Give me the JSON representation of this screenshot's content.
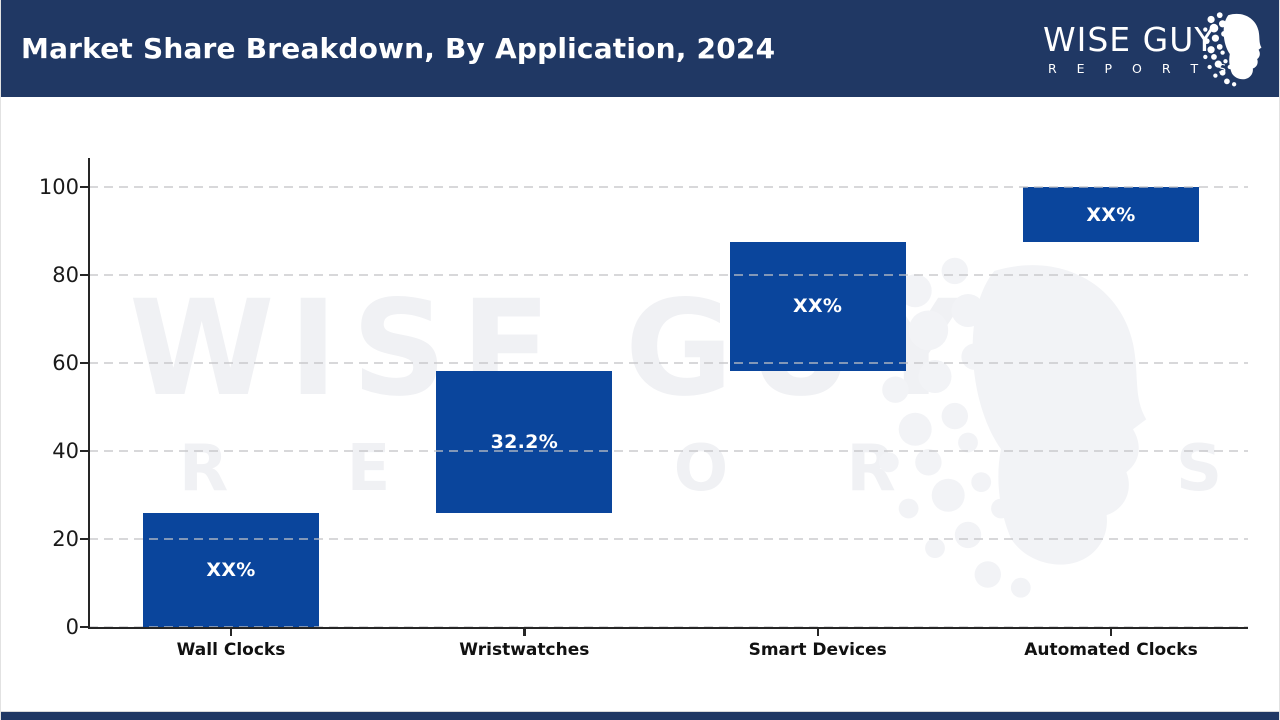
{
  "header": {
    "title": "Market Share Breakdown, By Application, 2024",
    "logo": {
      "name": "WISE GUY",
      "sub": "R E P O R T S"
    }
  },
  "watermark": {
    "line1": "WISE GUY",
    "line2": "R E P O R T S"
  },
  "icons": {
    "logo_face": "dotted-head-profile",
    "watermark_face": "dotted-head-profile"
  },
  "colors": {
    "header_bg": "#203864",
    "footer_bg": "#203864",
    "bar": "#0a459c",
    "bar_label": "#ffffff",
    "axis": "#262626",
    "gridline": "#c9c9cc",
    "watermark": "#f0f1f4",
    "title_text": "#ffffff"
  },
  "chart_data": {
    "type": "bar",
    "subtype": "floating-waterfall",
    "title": "Market Share Breakdown, By Application, 2024",
    "categories": [
      "Wall Clocks",
      "Wristwatches",
      "Smart Devices",
      "Automated Clocks"
    ],
    "segments": [
      {
        "category": "Wall Clocks",
        "start": 0,
        "end": 26,
        "label": "XX%"
      },
      {
        "category": "Wristwatches",
        "start": 26,
        "end": 58.2,
        "label": "32.2%"
      },
      {
        "category": "Smart Devices",
        "start": 58.2,
        "end": 87.5,
        "label": "XX%"
      },
      {
        "category": "Automated Clocks",
        "start": 87.5,
        "end": 100,
        "label": "XX%"
      }
    ],
    "yticks": [
      0,
      20,
      40,
      60,
      80,
      100
    ],
    "ylim": [
      0,
      106
    ],
    "xlabel": "",
    "ylabel": "",
    "grid": "horizontal-dashed",
    "legend": "none"
  }
}
